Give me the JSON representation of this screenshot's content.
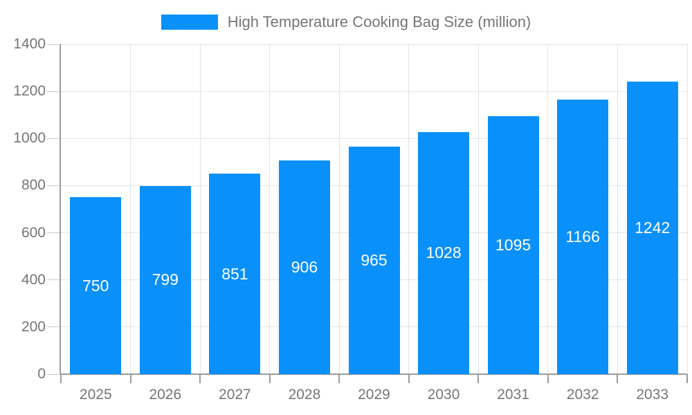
{
  "legend": {
    "label": "High Temperature Cooking Bag Size (million)"
  },
  "colors": {
    "bar": "#0A90FA",
    "axis_text": "#757575",
    "value_label": "#FFFFFF",
    "gridline": "#E3E3E3",
    "axis_line": "#9B9B9B",
    "tick": "#C9C9C9",
    "background": "#FFFFFF"
  },
  "chart_data": {
    "type": "bar",
    "title": "High Temperature Cooking Bag Size (million)",
    "categories": [
      "2025",
      "2026",
      "2027",
      "2028",
      "2029",
      "2030",
      "2031",
      "2032",
      "2033"
    ],
    "values": [
      750,
      799,
      851,
      906,
      965,
      1028,
      1095,
      1166,
      1242
    ],
    "xlabel": "",
    "ylabel": "",
    "ylim": [
      0,
      1400
    ],
    "yticks": [
      0,
      200,
      400,
      600,
      800,
      1000,
      1200,
      1400
    ],
    "grid": true,
    "legend_position": "top",
    "value_label_position": "inside-center"
  }
}
